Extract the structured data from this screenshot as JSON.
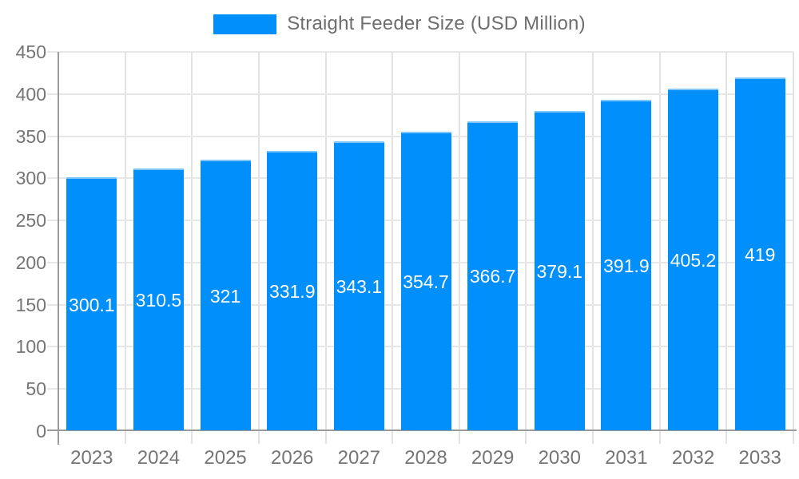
{
  "legend": {
    "label": "Straight Feeder Size (USD Million)",
    "swatch_color": "#008FFB"
  },
  "chart_data": {
    "type": "bar",
    "title": "Straight Feeder Size (USD Million)",
    "series": [
      {
        "name": "Straight Feeder Size (USD Million)",
        "values": [
          300.1,
          310.5,
          321,
          331.9,
          343.1,
          354.7,
          366.7,
          379.1,
          391.9,
          405.2,
          419
        ]
      }
    ],
    "categories": [
      "2023",
      "2024",
      "2025",
      "2026",
      "2027",
      "2028",
      "2029",
      "2030",
      "2031",
      "2032",
      "2033"
    ],
    "data_labels": [
      "300.1",
      "310.5",
      "321",
      "331.9",
      "343.1",
      "354.7",
      "366.7",
      "379.1",
      "391.9",
      "405.2",
      "419"
    ],
    "ylim": [
      0,
      450
    ],
    "yticks": [
      0,
      50,
      100,
      150,
      200,
      250,
      300,
      350,
      400,
      450
    ],
    "grid": true,
    "legend_position": "top",
    "bar_color": "#008FFB",
    "bar_edge_color": "#7fc6fd",
    "data_label_color": "#ffffff",
    "axis_text_color": "#757575",
    "grid_color": "#e7e7e7",
    "axis_line_color": "#9b9b9b"
  }
}
